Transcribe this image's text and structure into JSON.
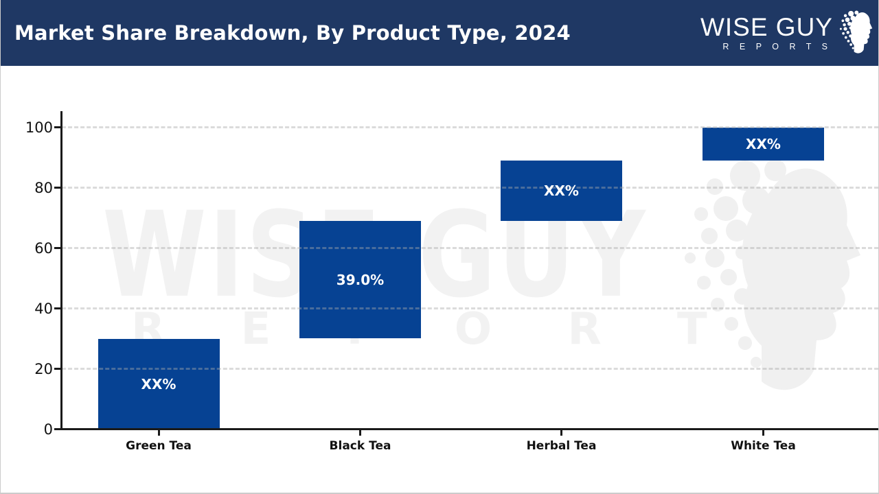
{
  "header": {
    "title": "Market Share Breakdown, By Product Type, 2024",
    "logo_line1": "WISE GUY",
    "logo_line2": "R E P O R T S"
  },
  "watermark": {
    "line1": "WISE GUY",
    "line2": "R E P O R T S"
  },
  "colors": {
    "header_bg": "#1F3864",
    "bar_fill": "#064293",
    "axis": "#1A1A1A",
    "gridline_over_white": "#DEDEDE",
    "gridline_rgba": "rgba(170,170,170,0.42)",
    "bar_label": "#FFFFFF",
    "tick_label": "#111111",
    "watermark": "#F2F2F2",
    "border": "#CCCCCC"
  },
  "chart_data": {
    "type": "bar",
    "subtype": "waterfall",
    "title": "Market Share Breakdown, By Product Type, 2024",
    "categories": [
      "Green Tea",
      "Black Tea",
      "Herbal Tea",
      "White Tea"
    ],
    "segments": [
      {
        "category": "Green Tea",
        "start": 0,
        "end": 30,
        "value": 30,
        "label": "XX%"
      },
      {
        "category": "Black Tea",
        "start": 30,
        "end": 69,
        "value": 39,
        "label": "39.0%"
      },
      {
        "category": "Herbal Tea",
        "start": 69,
        "end": 89,
        "value": 20,
        "label": "XX%"
      },
      {
        "category": "White Tea",
        "start": 89,
        "end": 100,
        "value": 11,
        "label": "XX%"
      }
    ],
    "yticks": [
      0,
      20,
      40,
      60,
      80,
      100
    ],
    "ylim": [
      0,
      105
    ],
    "xlabel": "",
    "ylabel": "",
    "grid": "horizontal-dashed",
    "legend": "none"
  }
}
